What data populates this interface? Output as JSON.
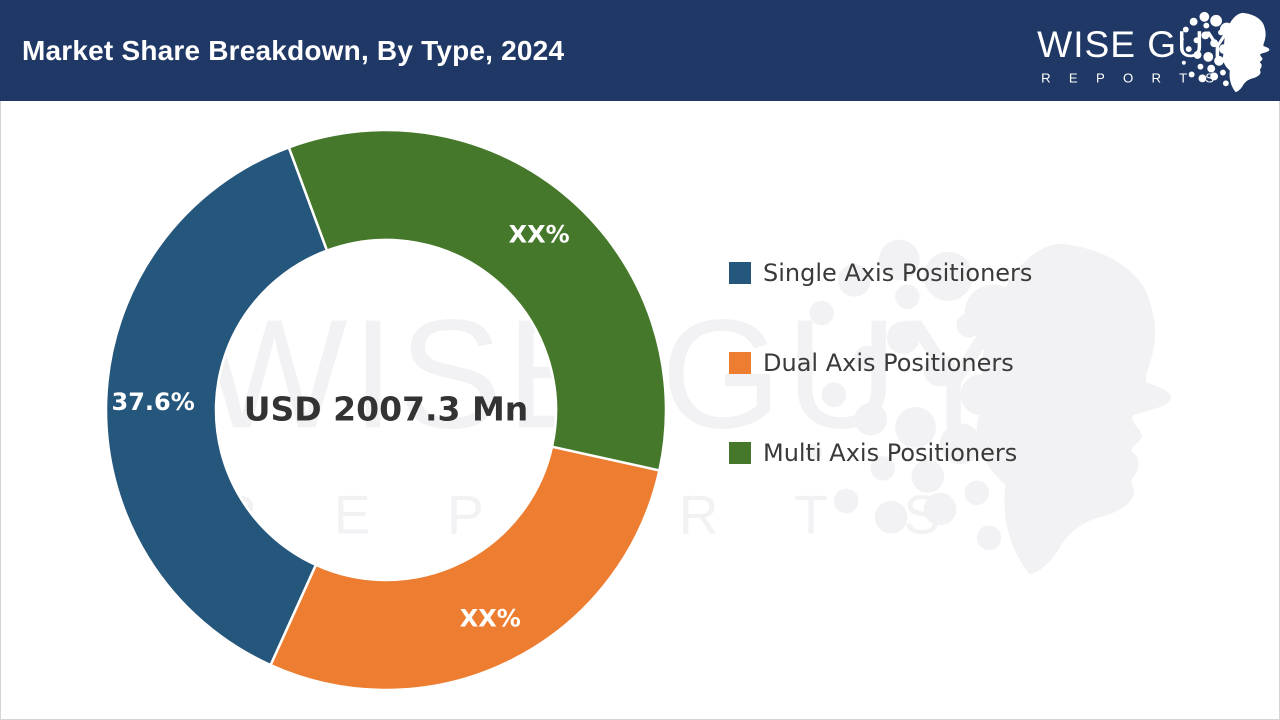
{
  "header": {
    "title": "Market Share Breakdown, By Type, 2024",
    "background_color": "#203865"
  },
  "logo": {
    "line1": "WISE GUY",
    "line2": "R E P O R T S"
  },
  "chart_data": {
    "type": "pie",
    "subtype": "donut",
    "title": "Market Share Breakdown, By Type, 2024",
    "center_label": "USD 2007.3 Mn",
    "legend_position": "right",
    "direction": "counterclockwise",
    "start_angle_deg": 110.3,
    "outer_radius": 280,
    "inner_radius": 170,
    "label_radius": 233,
    "segments": [
      {
        "label": "Single Axis Positioners",
        "display": "37.6%",
        "value": 37.6,
        "color": "#25567b"
      },
      {
        "label": "Dual Axis Positioners",
        "display": "XX%",
        "value": 28.3,
        "color": "#ed7d31"
      },
      {
        "label": "Multi Axis Positioners",
        "display": "XX%",
        "value": 34.1,
        "color": "#45782a"
      }
    ]
  },
  "watermark": {
    "color": "#f2f2f4"
  }
}
